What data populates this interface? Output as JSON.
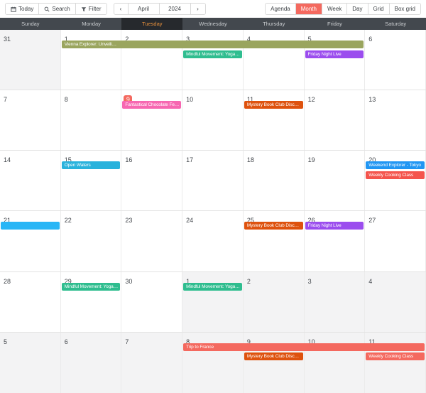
{
  "colors": {
    "accent": "#f4695f",
    "header_bg": "#43484e",
    "header_active_bg": "#26292d",
    "header_active_text": "#e8913c"
  },
  "toolbar": {
    "today_label": "Today",
    "search_label": "Search",
    "filter_label": "Filter",
    "nav": {
      "prev": "‹",
      "month": "April",
      "year": "2024",
      "next": "›"
    },
    "views": [
      {
        "label": "Agenda",
        "active": false
      },
      {
        "label": "Month",
        "active": true
      },
      {
        "label": "Week",
        "active": false
      },
      {
        "label": "Day",
        "active": false
      },
      {
        "label": "Grid",
        "active": false
      },
      {
        "label": "Box grid",
        "active": false
      }
    ]
  },
  "day_headers": [
    {
      "label": "Sunday",
      "active": false
    },
    {
      "label": "Monday",
      "active": false
    },
    {
      "label": "Tuesday",
      "active": true
    },
    {
      "label": "Wednesday",
      "active": false
    },
    {
      "label": "Thursday",
      "active": false
    },
    {
      "label": "Friday",
      "active": false
    },
    {
      "label": "Saturday",
      "active": false
    }
  ],
  "calendar": {
    "weeks": [
      {
        "days": [
          {
            "date": "31",
            "outside": true,
            "today": false
          },
          {
            "date": "1",
            "outside": false,
            "today": false
          },
          {
            "date": "2",
            "outside": false,
            "today": false
          },
          {
            "date": "3",
            "outside": false,
            "today": false
          },
          {
            "date": "4",
            "outside": false,
            "today": false
          },
          {
            "date": "5",
            "outside": false,
            "today": false
          },
          {
            "date": "6",
            "outside": false,
            "today": false
          }
        ],
        "events": [
          {
            "title": "Vienna Explorer: Unveiling th...",
            "color": "#9aa55e",
            "col": 1,
            "span": 5,
            "line": 0
          },
          {
            "title": "Mindful Movement: Yoga Cl...",
            "color": "#2fbd8f",
            "col": 3,
            "span": 1,
            "line": 1
          },
          {
            "title": "Friday Night Live",
            "color": "#9b4dee",
            "col": 5,
            "span": 1,
            "line": 1
          }
        ]
      },
      {
        "days": [
          {
            "date": "7",
            "outside": false,
            "today": false
          },
          {
            "date": "8",
            "outside": false,
            "today": false
          },
          {
            "date": "9",
            "outside": false,
            "today": true
          },
          {
            "date": "10",
            "outside": false,
            "today": false
          },
          {
            "date": "11",
            "outside": false,
            "today": false
          },
          {
            "date": "12",
            "outside": false,
            "today": false
          },
          {
            "date": "13",
            "outside": false,
            "today": false
          }
        ],
        "events": [
          {
            "title": "Fantastical Chocolate Festi...",
            "color": "#f767b1",
            "col": 2,
            "span": 1,
            "line": 0
          },
          {
            "title": "Mystery Book Club Discussi...",
            "color": "#de520e",
            "col": 4,
            "span": 1,
            "line": 0
          }
        ]
      },
      {
        "days": [
          {
            "date": "14",
            "outside": false,
            "today": false
          },
          {
            "date": "15",
            "outside": false,
            "today": false
          },
          {
            "date": "16",
            "outside": false,
            "today": false
          },
          {
            "date": "17",
            "outside": false,
            "today": false
          },
          {
            "date": "18",
            "outside": false,
            "today": false
          },
          {
            "date": "19",
            "outside": false,
            "today": false
          },
          {
            "date": "20",
            "outside": false,
            "today": false
          }
        ],
        "events": [
          {
            "title": "Open Waters",
            "color": "#29b2dc",
            "col": 1,
            "span": 1,
            "line": 0
          },
          {
            "title": "Weekend Explorer - Tokyo",
            "color": "#2196f3",
            "col": 6,
            "span": 1,
            "line": 0
          },
          {
            "title": "Weekly Cooking Class",
            "color": "#f4544c",
            "col": 6,
            "span": 1,
            "line": 1
          }
        ]
      },
      {
        "days": [
          {
            "date": "21",
            "outside": false,
            "today": false
          },
          {
            "date": "22",
            "outside": false,
            "today": false
          },
          {
            "date": "23",
            "outside": false,
            "today": false
          },
          {
            "date": "24",
            "outside": false,
            "today": false
          },
          {
            "date": "25",
            "outside": false,
            "today": false
          },
          {
            "date": "26",
            "outside": false,
            "today": false
          },
          {
            "date": "27",
            "outside": false,
            "today": false
          }
        ],
        "events": [
          {
            "title": "",
            "color": "#29b6f6",
            "col": 0,
            "span": 1,
            "line": 0
          },
          {
            "title": "Mystery Book Club Discussi...",
            "color": "#de520e",
            "col": 4,
            "span": 1,
            "line": 0
          },
          {
            "title": "Friday Night Live",
            "color": "#9b4dee",
            "col": 5,
            "span": 1,
            "line": 0
          }
        ]
      },
      {
        "days": [
          {
            "date": "28",
            "outside": false,
            "today": false
          },
          {
            "date": "29",
            "outside": false,
            "today": false
          },
          {
            "date": "30",
            "outside": false,
            "today": false
          },
          {
            "date": "1",
            "outside": true,
            "today": false
          },
          {
            "date": "2",
            "outside": true,
            "today": false
          },
          {
            "date": "3",
            "outside": true,
            "today": false
          },
          {
            "date": "4",
            "outside": true,
            "today": false
          }
        ],
        "events": [
          {
            "title": "Mindful Movement: Yoga Cl...",
            "color": "#2fbd8f",
            "col": 1,
            "span": 1,
            "line": 0
          },
          {
            "title": "Mindful Movement: Yoga Cl...",
            "color": "#2fbd8f",
            "col": 3,
            "span": 1,
            "line": 0
          }
        ]
      },
      {
        "days": [
          {
            "date": "5",
            "outside": true,
            "today": false
          },
          {
            "date": "6",
            "outside": true,
            "today": false
          },
          {
            "date": "7",
            "outside": true,
            "today": false
          },
          {
            "date": "8",
            "outside": true,
            "today": false
          },
          {
            "date": "9",
            "outside": true,
            "today": false
          },
          {
            "date": "10",
            "outside": true,
            "today": false
          },
          {
            "date": "11",
            "outside": true,
            "today": false
          }
        ],
        "events": [
          {
            "title": "Trip to France",
            "color": "#f4695f",
            "col": 3,
            "span": 4,
            "line": 0
          },
          {
            "title": "Mystery Book Club Discussi...",
            "color": "#de520e",
            "col": 4,
            "span": 1,
            "line": 1
          },
          {
            "title": "Weekly Cooking Class",
            "color": "#f4695f",
            "col": 6,
            "span": 1,
            "line": 1
          }
        ]
      }
    ]
  }
}
